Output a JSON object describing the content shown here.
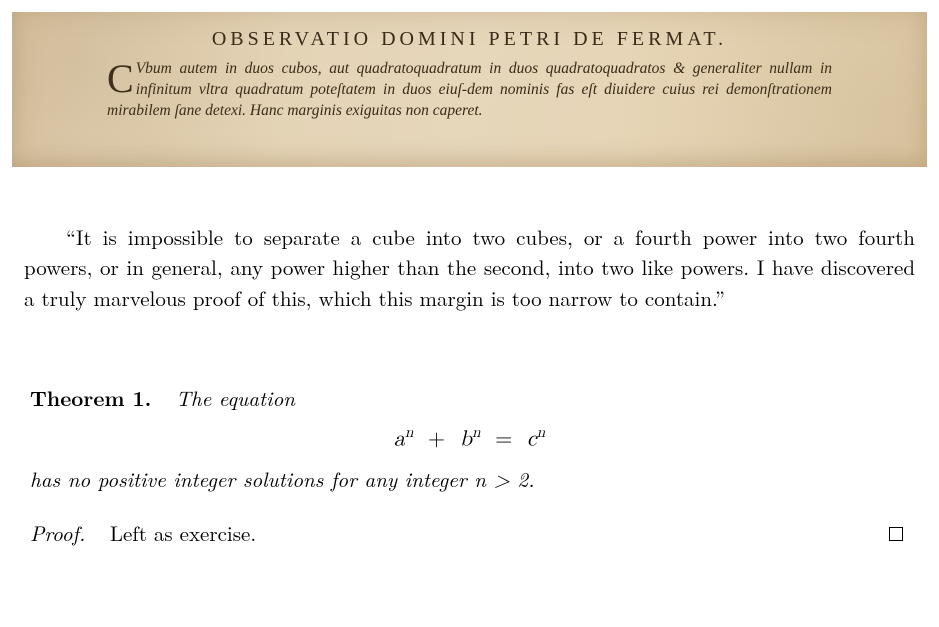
{
  "manuscript": {
    "title": "OBSERVATIO DOMINI PETRI DE FERMAT.",
    "dropcap": "C",
    "body_html": "Vbum autem in duos cubos, aut quadratoquadratum in duos quadratoquadratos & generaliter nullam in infinitum vltra quadratum poteſtatem in duos eiuſ-dem nominis fas eſt diuidere cuius rei demonſtrationem mirabilem ſane detexi. Hanc marginis exiguitas non caperet.",
    "background_color": "#e4d3b5",
    "text_color": "#3a2a18",
    "title_fontsize": 20,
    "body_fontsize": 15.5,
    "letter_spacing": 4
  },
  "translation": {
    "text": "“It is impossible to separate a cube into two cubes, or a fourth power into two fourth powers, or in general, any power higher than the second, into two like powers. I have discovered a truly marvelous proof of this, which this margin is too narrow to contain.”",
    "fontsize": 21,
    "text_color": "#000000"
  },
  "theorem": {
    "label": "Theorem 1.",
    "statement_before": "The equation",
    "equation_a": "a",
    "equation_b": "b",
    "equation_c": "c",
    "equation_exp": "n",
    "statement_after": "has no positive integer solutions for any integer n > 2.",
    "proof_label": "Proof.",
    "proof_text": "Left as exercise.",
    "fontsize": 21
  },
  "colors": {
    "page_bg": "#ffffff",
    "parchment_bg": "#e4d3b5",
    "ink": "#3a2a18",
    "body_text": "#000000"
  }
}
